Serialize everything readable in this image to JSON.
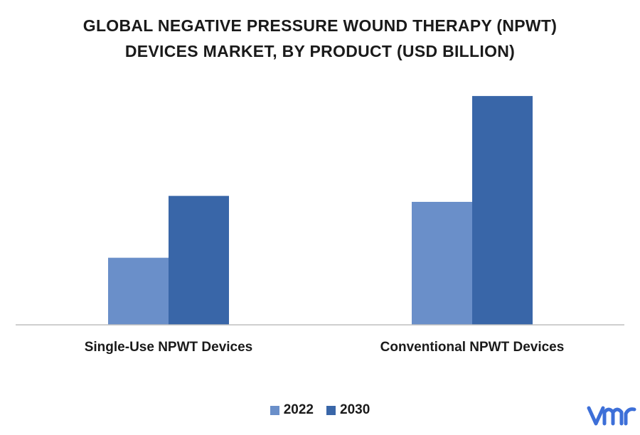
{
  "chart_data": {
    "type": "bar",
    "title_lines": [
      "GLOBAL NEGATIVE PRESSURE WOUND THERAPY (NPWT)",
      "DEVICES MARKET, BY PRODUCT (USD BILLION)"
    ],
    "categories": [
      "Single-Use NPWT Devices",
      "Conventional NPWT Devices"
    ],
    "series": [
      {
        "name": "2022",
        "color": "#6a8fc9",
        "values": [
          0.9,
          1.65
        ]
      },
      {
        "name": "2030",
        "color": "#3966a8",
        "values": [
          1.73,
          3.07
        ]
      }
    ],
    "ylim": [
      0,
      3.5
    ],
    "grid": false,
    "legend": "bottom-center"
  },
  "logo": {
    "icon": "vmr-logo-icon",
    "color": "#3d6fd8"
  }
}
